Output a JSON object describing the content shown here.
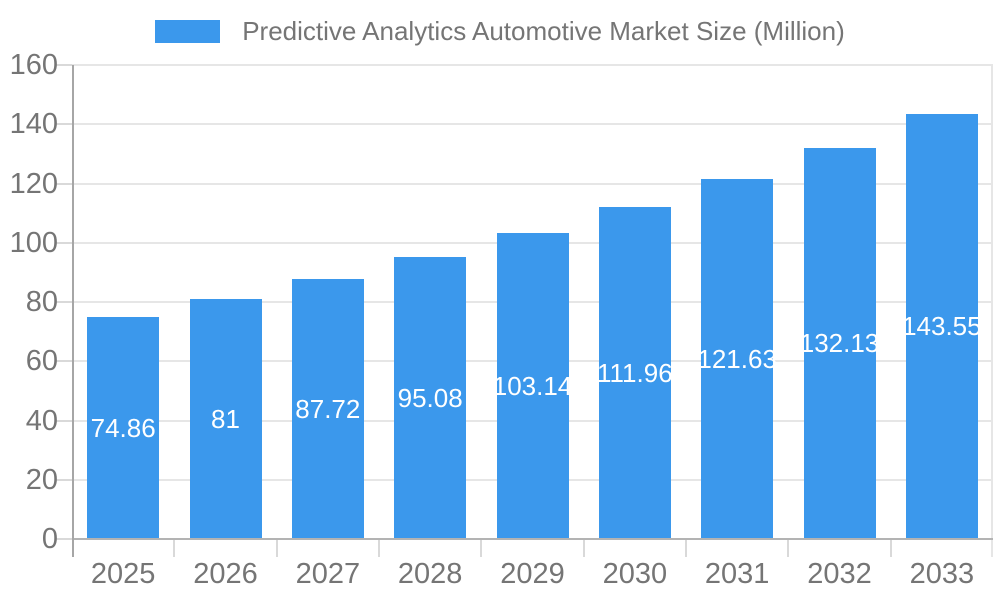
{
  "chart_data": {
    "type": "bar",
    "title": "Predictive Analytics Automotive Market Size (Million)",
    "categories": [
      "2025",
      "2026",
      "2027",
      "2028",
      "2029",
      "2030",
      "2031",
      "2032",
      "2033"
    ],
    "values": [
      74.86,
      81,
      87.72,
      95.08,
      103.14,
      111.96,
      121.63,
      132.13,
      143.55
    ],
    "value_labels": [
      "74.86",
      "81",
      "87.72",
      "95.08",
      "103.14",
      "111.96",
      "121.63",
      "132.13",
      "143.55"
    ],
    "ytick_labels": [
      "0",
      "20",
      "40",
      "60",
      "80",
      "100",
      "120",
      "140",
      "160"
    ],
    "yticks": [
      0,
      20,
      40,
      60,
      80,
      100,
      120,
      140,
      160
    ],
    "ylim": [
      0,
      160
    ],
    "xlabel": "",
    "ylabel": "",
    "grid": true,
    "legend_position": "top",
    "value_label_position": "inside-center",
    "colors": {
      "bar": "#3b98ec",
      "grid": "#e6e6e6",
      "axis": "#a6a6a6",
      "baseline": "#b3b3b3",
      "tick": "#d9d9d9",
      "text": "#757575",
      "value_text": "#ffffff",
      "background": "#ffffff"
    }
  }
}
